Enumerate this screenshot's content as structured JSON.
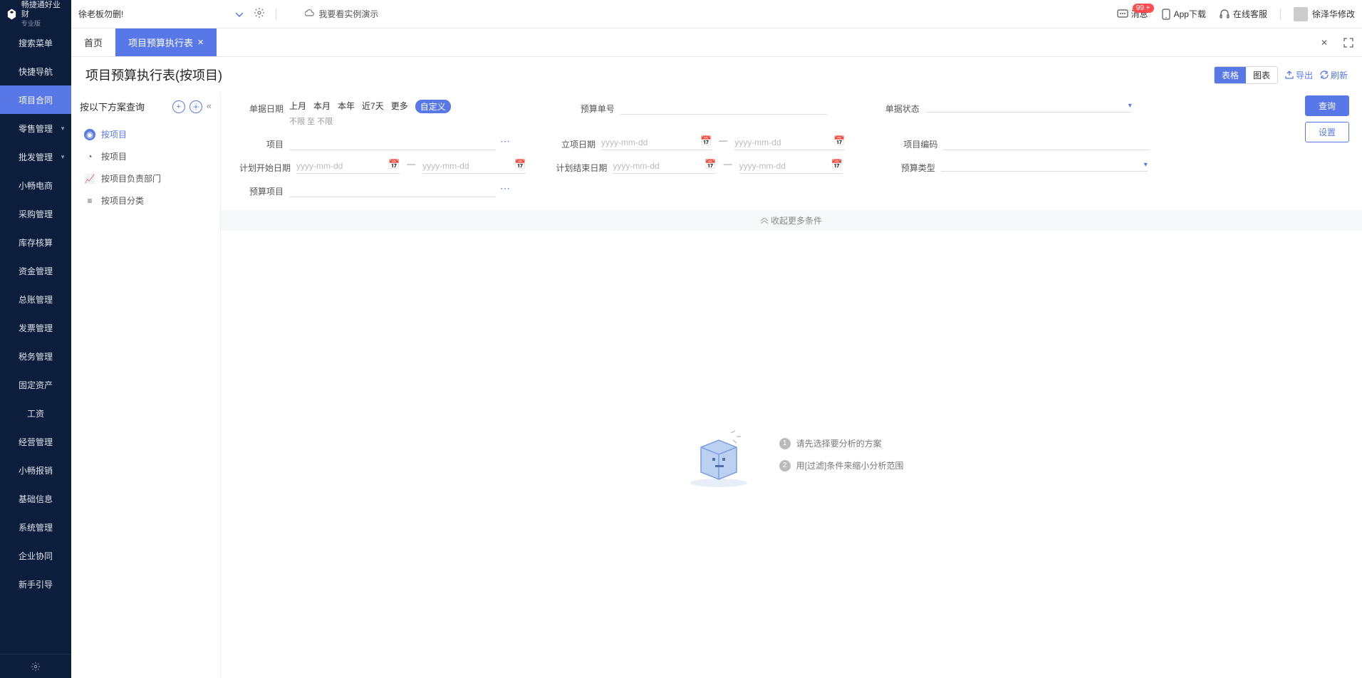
{
  "header": {
    "org": "徐老板勿删!",
    "demo_link": "我要看实例演示",
    "msg_label": "消息",
    "msg_badge": "99 +",
    "download_label": "App下载",
    "service_label": "在线客服",
    "user_name": "徐泽华修改"
  },
  "sidebar": {
    "logo_title": "畅捷通好业财",
    "logo_sub": "专业版",
    "items": [
      {
        "label": "搜索菜单"
      },
      {
        "label": "快捷导航"
      },
      {
        "label": "项目合同",
        "active": true
      },
      {
        "label": "零售管理",
        "caret": true
      },
      {
        "label": "批发管理",
        "caret": true
      },
      {
        "label": "小畅电商"
      },
      {
        "label": "采购管理"
      },
      {
        "label": "库存核算"
      },
      {
        "label": "资金管理"
      },
      {
        "label": "总账管理"
      },
      {
        "label": "发票管理"
      },
      {
        "label": "税务管理"
      },
      {
        "label": "固定资产"
      },
      {
        "label": "工资"
      },
      {
        "label": "经营管理"
      },
      {
        "label": "小畅报销"
      },
      {
        "label": "基础信息"
      },
      {
        "label": "系统管理"
      },
      {
        "label": "企业协同"
      },
      {
        "label": "新手引导"
      }
    ]
  },
  "tabs": {
    "home": "首页",
    "active": "项目预算执行表"
  },
  "page": {
    "title": "项目预算执行表(按项目)",
    "view_table": "表格",
    "view_chart": "图表",
    "export": "导出",
    "refresh": "刷新"
  },
  "scheme": {
    "head": "按以下方案查询",
    "items": [
      {
        "label": "按项目",
        "selected": true,
        "icon": "◉"
      },
      {
        "label": "按项目",
        "icon": "◔"
      },
      {
        "label": "按项目负责部门",
        "icon": "📈"
      },
      {
        "label": "按项目分类",
        "icon": "≡"
      }
    ]
  },
  "filters": {
    "bill_date_label": "单据日期",
    "date_quick": [
      "上月",
      "本月",
      "本年",
      "近7天",
      "更多"
    ],
    "date_custom": "自定义",
    "date_range_txt": "不限 至 不限",
    "budget_no_label": "预算单号",
    "bill_status_label": "单据状态",
    "project_label": "项目",
    "init_date_label": "立项日期",
    "project_code_label": "项目编码",
    "plan_start_label": "计划开始日期",
    "plan_end_label": "计划结束日期",
    "budget_type_label": "预算类型",
    "budget_item_label": "预算项目",
    "date_placeholder": "yyyy-mm-dd",
    "query_btn": "查询",
    "settings_btn": "设置",
    "collapse_label": "收起更多条件"
  },
  "empty": {
    "tip1": "请先选择要分析的方案",
    "tip2": "用[过滤]条件来缩小分析范围"
  },
  "colors": {
    "primary": "#5878e8",
    "sidebar_bg": "#0d1e3d",
    "badge": "#ff4d4f"
  }
}
